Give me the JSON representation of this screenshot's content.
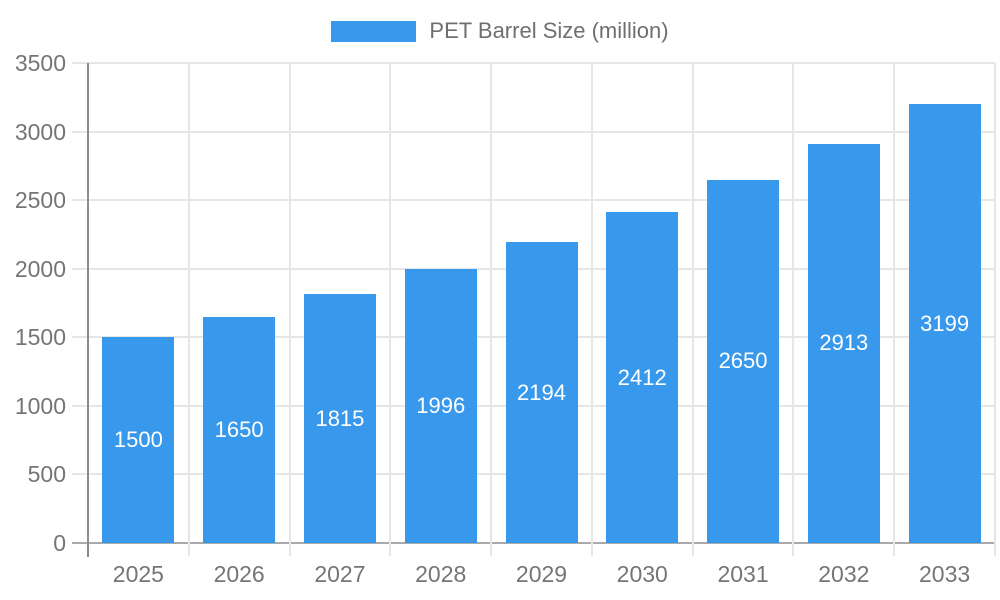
{
  "chart_data": {
    "type": "bar",
    "title": "PET Barrel Size (million)",
    "legend": {
      "label": "PET Barrel Size (million)",
      "position": "top"
    },
    "categories": [
      "2025",
      "2026",
      "2027",
      "2028",
      "2029",
      "2030",
      "2031",
      "2032",
      "2033"
    ],
    "values": [
      1500,
      1650,
      1815,
      1996,
      2194,
      2412,
      2650,
      2913,
      3199
    ],
    "bar_value_labels": [
      "1500",
      "1650",
      "1815",
      "1996",
      "2194",
      "2412",
      "2650",
      "2913",
      "3199"
    ],
    "xlabel": "",
    "ylabel": "",
    "ylim": [
      0,
      3500
    ],
    "ytick_interval": 500,
    "y_ticks": [
      "0",
      "500",
      "1000",
      "1500",
      "2000",
      "2500",
      "3000",
      "3500"
    ],
    "grid": true,
    "legend_position": "top",
    "colors": {
      "bar": "#3898ec",
      "bar_label": "#ffffff",
      "axis_label": "#757575",
      "legend_label": "#6f6f6f",
      "gridline": "#e6e6e6",
      "y_axis_line": "#8c8c8c",
      "baseline": "#aaaaaa",
      "background": "#ffffff"
    }
  }
}
